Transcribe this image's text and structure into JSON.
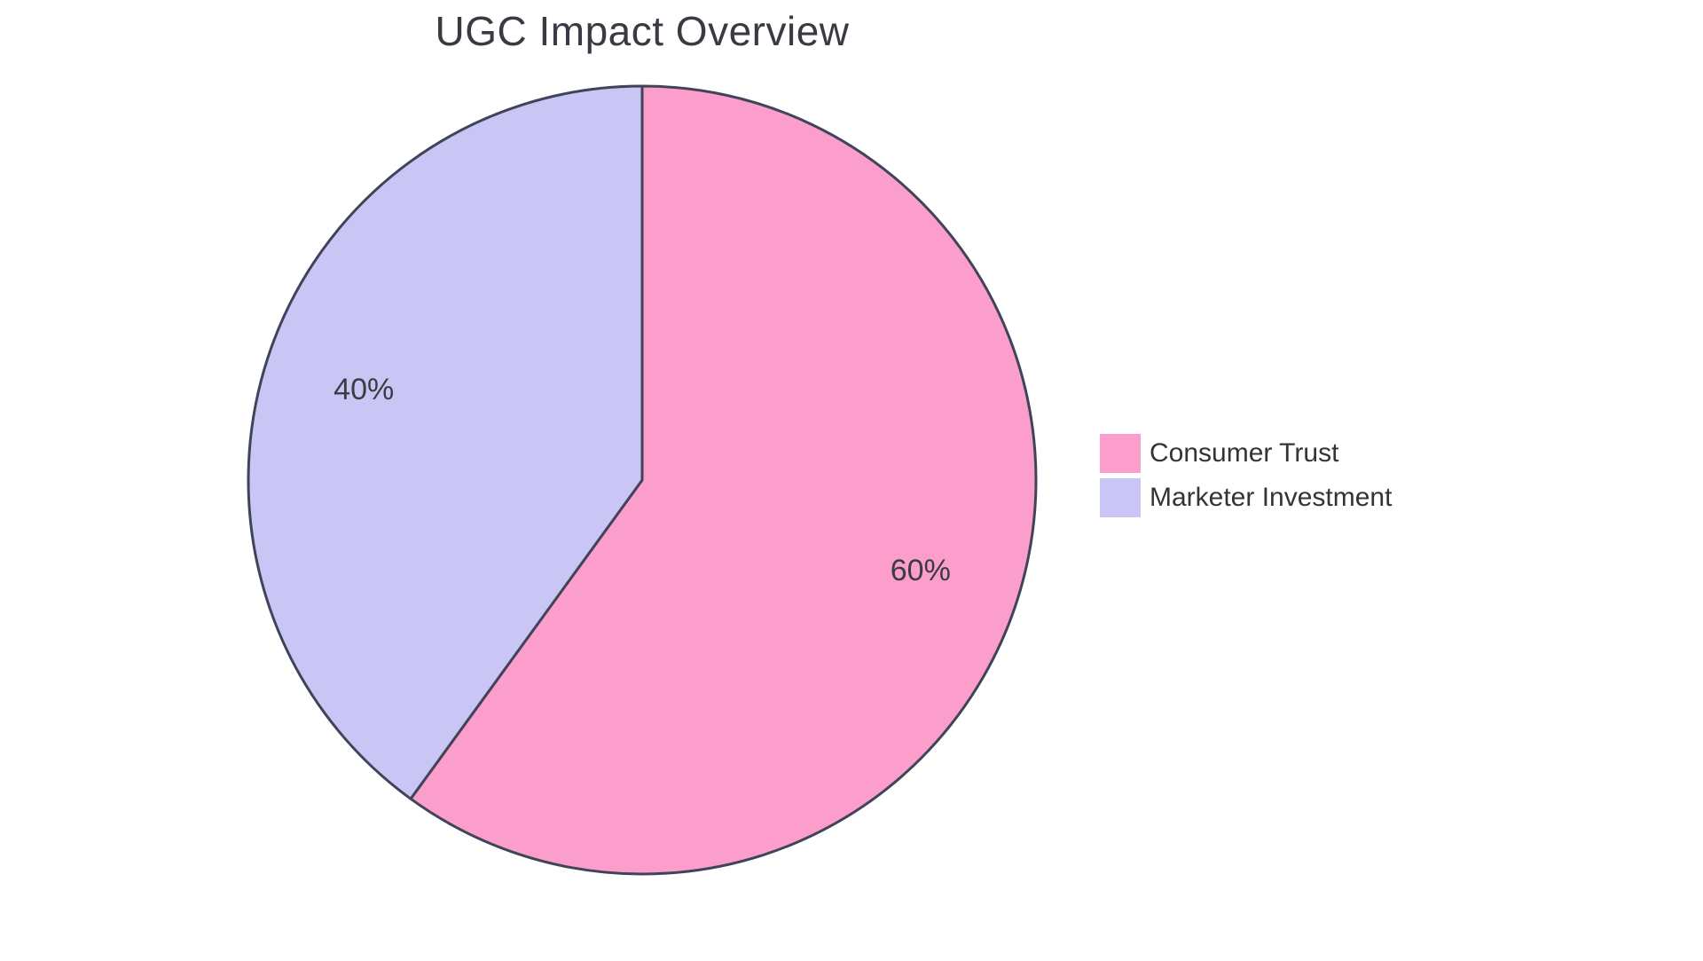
{
  "title": "UGC Impact Overview",
  "chart_data": {
    "type": "pie",
    "title": "UGC Impact Overview",
    "labels": [
      "Consumer Trust",
      "Marketer Investment"
    ],
    "values": [
      60,
      40
    ],
    "slice_labels": [
      "60%",
      "40%"
    ],
    "colors": [
      "#FB9ECB",
      "#C9C6F5"
    ],
    "stroke_color": "#3F4458",
    "stroke_width": 3,
    "slice_label_color": "#3B3B43",
    "start_angle_deg": -90,
    "direction": "clockwise",
    "legend_position": "right",
    "background": "#FFFFFF",
    "grid": false
  },
  "legend": {
    "items": [
      {
        "label": "Consumer Trust",
        "color": "#FB9ECB"
      },
      {
        "label": "Marketer Investment",
        "color": "#C9C6F5"
      }
    ]
  }
}
